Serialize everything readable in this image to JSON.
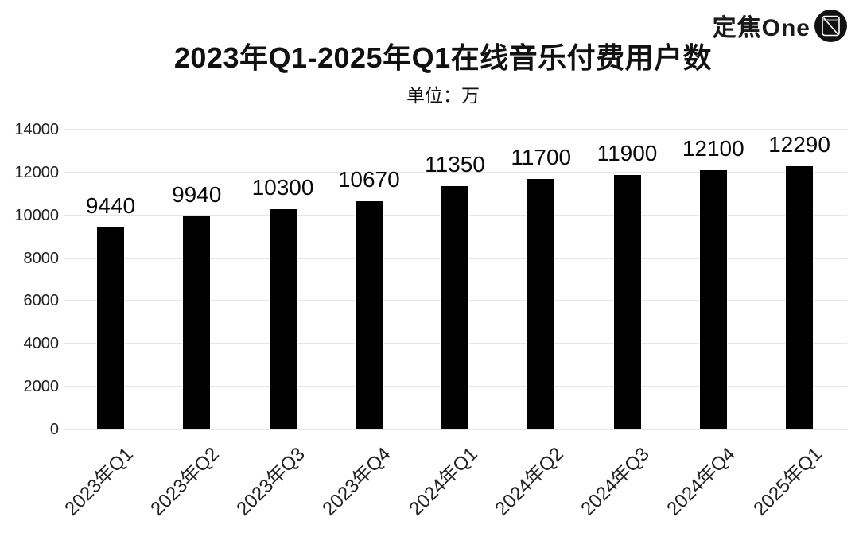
{
  "header": {
    "title": "2023年Q1-2025年Q1在线音乐付费用户数",
    "unit_label": "单位：万",
    "brand": "定焦One",
    "brand_icon": "camera-focus-lens-icon"
  },
  "colors": {
    "bar": "#000000",
    "gridline": "#e7e7e7",
    "text": "#111111",
    "background": "#ffffff"
  },
  "chart_data": {
    "type": "bar",
    "title": "2023年Q1-2025年Q1在线音乐付费用户数",
    "subtitle": "单位：万",
    "unit": "万",
    "categories": [
      "2023年Q1",
      "2023年Q2",
      "2023年Q3",
      "2023年Q4",
      "2024年Q1",
      "2024年Q2",
      "2024年Q3",
      "2024年Q4",
      "2025年Q1"
    ],
    "values": [
      9440,
      9940,
      10300,
      10670,
      11350,
      11700,
      11900,
      12100,
      12290
    ],
    "value_labels_shown": true,
    "xlabel": "",
    "ylabel": "",
    "ylim": [
      0,
      14000
    ],
    "y_ticks": [
      0,
      2000,
      4000,
      6000,
      8000,
      10000,
      12000,
      14000
    ],
    "grid": true,
    "legend": "none",
    "x_tick_rotation_deg": 45
  }
}
